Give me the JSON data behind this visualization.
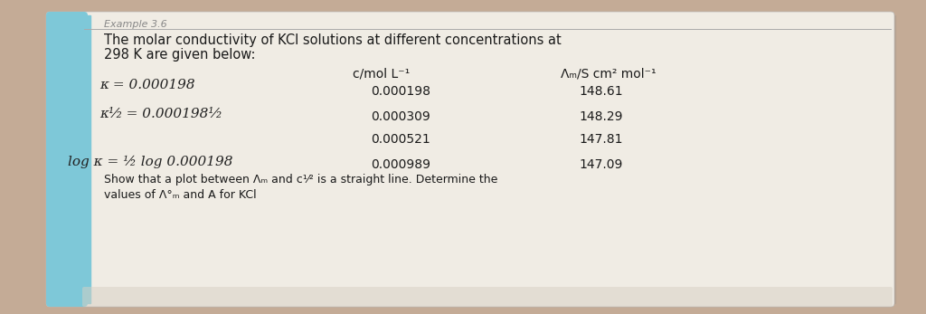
{
  "bg_color": "#c4ab96",
  "page_color": "#f0ece4",
  "blue_strip_color": "#7ec8d8",
  "example_label": "Example 3.6",
  "title_line1": "The molar conductivity of KCl solutions at different concentrations at",
  "title_line2": "298 K are given below:",
  "col1_header": "c/mol L⁻¹",
  "col2_header": "Λₘ/S cm² mol⁻¹",
  "c_values": [
    "0.000198",
    "0.000309",
    "0.000521",
    "0.000989"
  ],
  "lambda_values": [
    "148.61",
    "148.29",
    "147.81",
    "147.09"
  ],
  "left_ann1": "κ = 0.000198",
  "left_ann2": "κ¹⁄₂ = 0.000198¹⁄₂",
  "left_ann3": "log κ = ½ log 0.000198",
  "bottom_text1": "Show that a plot between Λₘ and c¹⁄² is a straight line. Determine the",
  "bottom_text2": "values of Λ°ₘ and A for KCl",
  "title_fontsize": 10.5,
  "body_fontsize": 10,
  "small_fontsize": 9,
  "annot_fontsize": 11
}
